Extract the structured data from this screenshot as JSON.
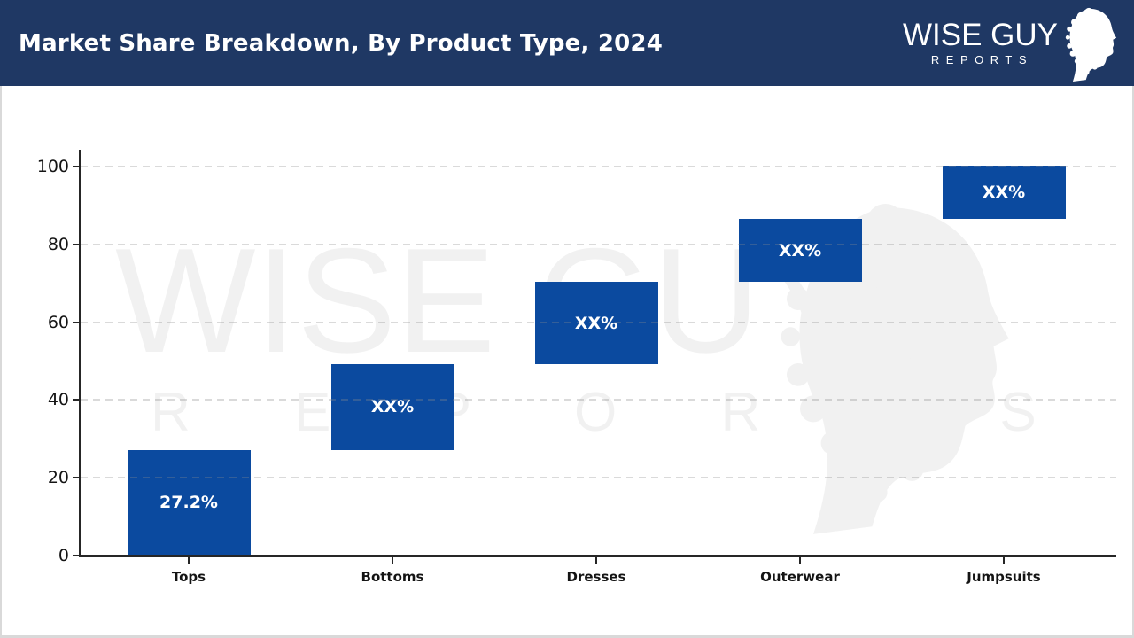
{
  "header": {
    "title": "Market Share Breakdown, By Product Type, 2024",
    "logo": {
      "wordmark": "WISE GUY",
      "subtext": "REPORTS"
    }
  },
  "watermark": {
    "wordmark": "WISE GUY",
    "subtext": "R E P O R T S"
  },
  "colors": {
    "header_bg": "#1f3864",
    "bar": "#0b4a9f",
    "bar_label": "#ffffff",
    "axis": "#262626",
    "tick_label": "#141414",
    "grid_dash": "rgba(140,140,140,0.32)",
    "watermark": "#f1f1f1",
    "border": "#d9d9d9"
  },
  "chart_data": {
    "type": "bar",
    "variant": "waterfall",
    "title": "Market Share Breakdown, By Product Type, 2024",
    "xlabel": "",
    "ylabel": "",
    "categories": [
      "Tops",
      "Bottoms",
      "Dresses",
      "Outerwear",
      "Jumpsuits"
    ],
    "bars": [
      {
        "category": "Tops",
        "start": 0,
        "end": 27.2,
        "label": "27.2%"
      },
      {
        "category": "Bottoms",
        "start": 27.2,
        "end": 49.2,
        "label": "XX%"
      },
      {
        "category": "Dresses",
        "start": 49.2,
        "end": 70.3,
        "label": "XX%"
      },
      {
        "category": "Outerwear",
        "start": 70.3,
        "end": 86.6,
        "label": "XX%"
      },
      {
        "category": "Jumpsuits",
        "start": 86.6,
        "end": 100.2,
        "label": "XX%"
      }
    ],
    "yticks": [
      0,
      20,
      40,
      60,
      80,
      100
    ],
    "ylim": [
      0,
      105
    ],
    "grid": "dashed-horizontal",
    "legend": "none"
  }
}
